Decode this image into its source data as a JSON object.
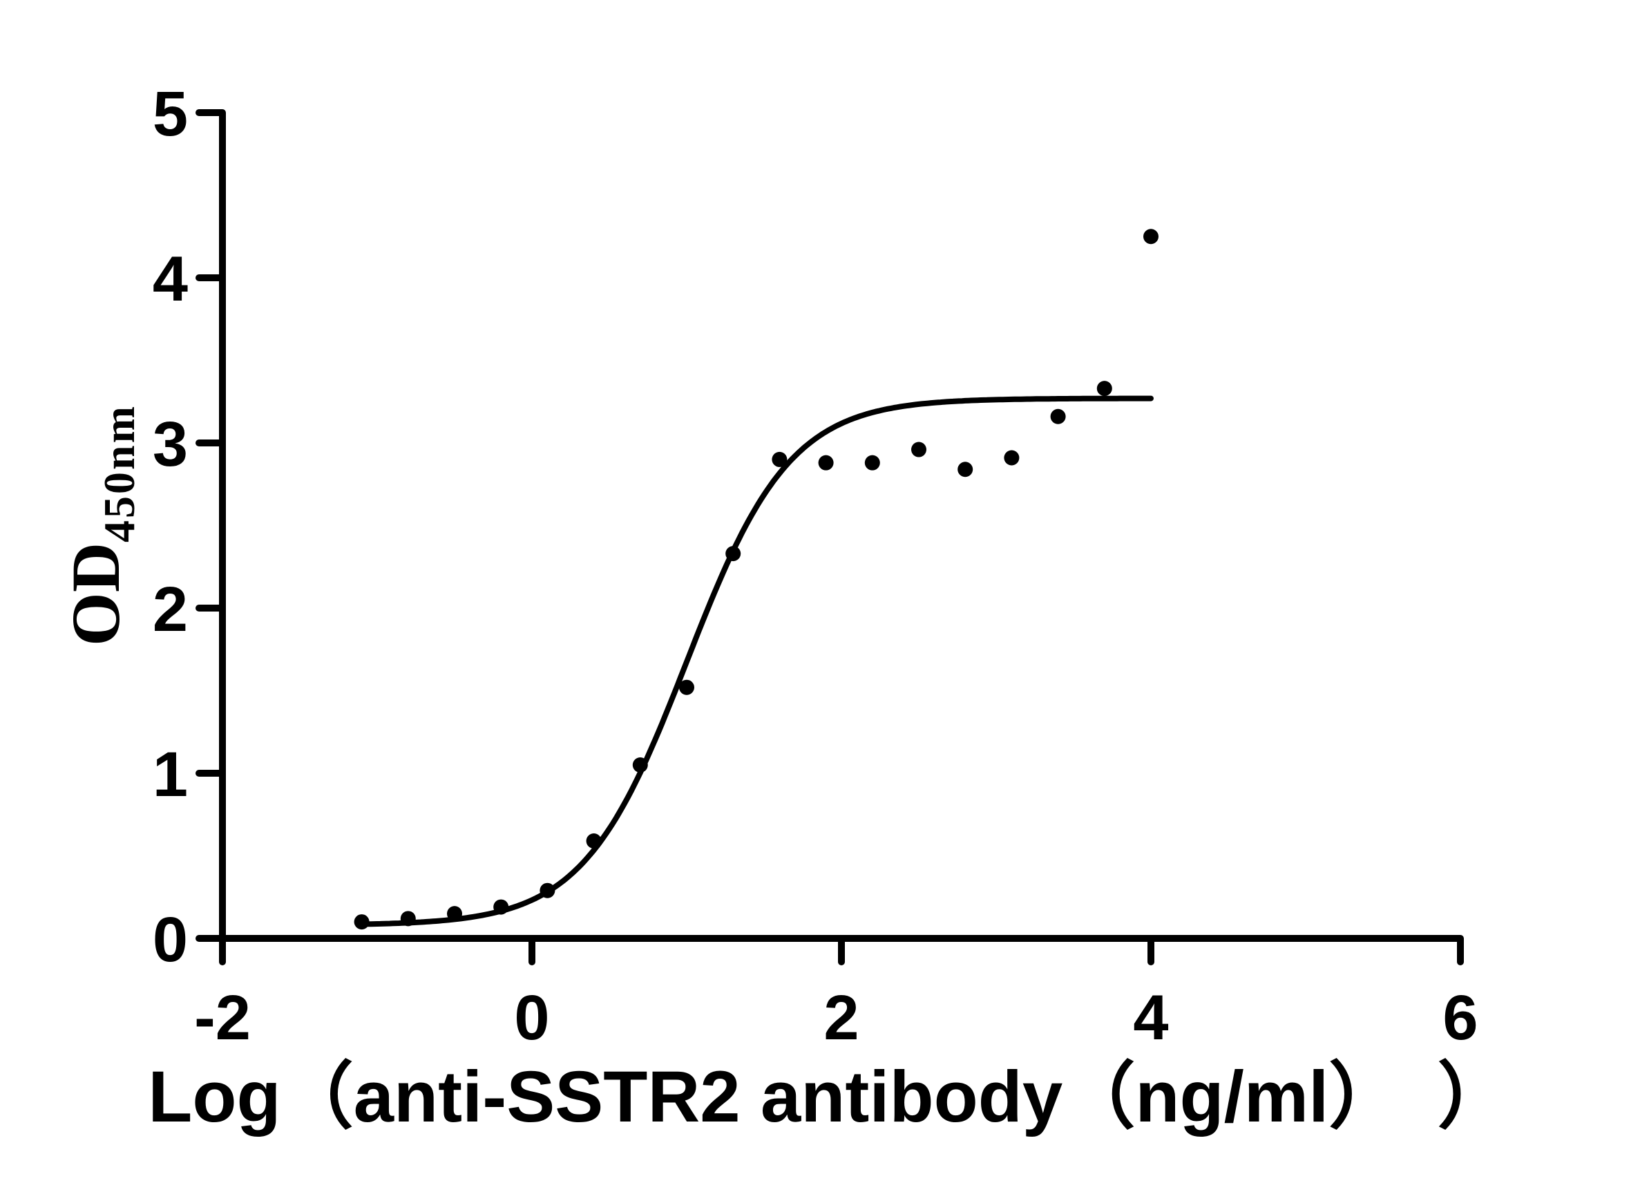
{
  "chart_data": {
    "type": "scatter",
    "title": "",
    "xlabel": "Log（anti-SSTR2 antibody（ng/ml）　）",
    "ylabel_main": "OD",
    "ylabel_sub": "450nm",
    "xlim": [
      -2,
      6
    ],
    "ylim": [
      0,
      5
    ],
    "x_ticks": [
      -2,
      0,
      2,
      4,
      6
    ],
    "y_ticks": [
      0,
      1,
      2,
      3,
      4,
      5
    ],
    "grid": false,
    "legend": false,
    "axis_color": "#000000",
    "marker_color": "#000000",
    "line_color": "#000000",
    "background_color": "#ffffff",
    "points": [
      [
        -1.1,
        0.1
      ],
      [
        -0.8,
        0.12
      ],
      [
        -0.5,
        0.15
      ],
      [
        -0.2,
        0.19
      ],
      [
        0.1,
        0.29
      ],
      [
        0.4,
        0.59
      ],
      [
        0.7,
        1.05
      ],
      [
        1.0,
        1.52
      ],
      [
        1.3,
        2.33
      ],
      [
        1.6,
        2.9
      ],
      [
        1.9,
        2.88
      ],
      [
        2.2,
        2.88
      ],
      [
        2.5,
        2.96
      ],
      [
        2.8,
        2.84
      ],
      [
        3.1,
        2.91
      ],
      [
        3.4,
        3.16
      ],
      [
        3.7,
        3.33
      ],
      [
        4.0,
        4.25
      ]
    ],
    "fit_curve": {
      "model": "4PL-sigmoid",
      "bottom": 0.08,
      "top": 3.27,
      "logEC50": 1.0,
      "hillslope": 1.3,
      "x_start": -1.08,
      "x_end": 4.0
    }
  }
}
